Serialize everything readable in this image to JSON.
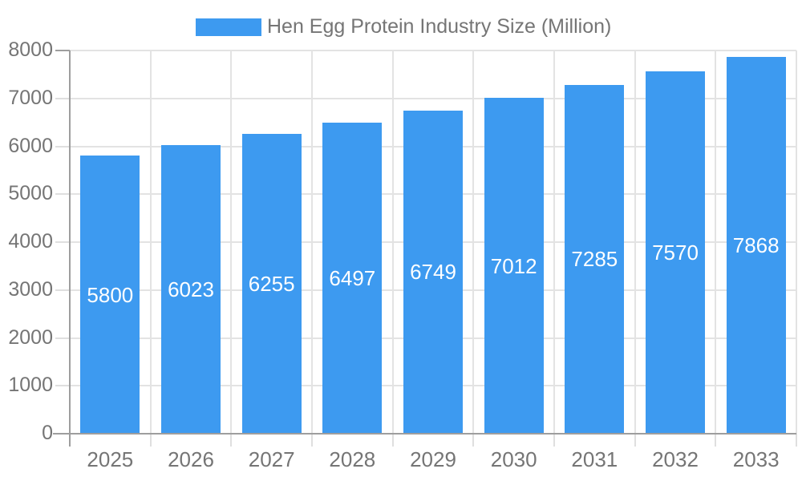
{
  "legend": {
    "label": "Hen Egg Protein Industry Size (Million)"
  },
  "chart_data": {
    "type": "bar",
    "title": "Hen Egg Protein Industry Size (Million)",
    "categories": [
      "2025",
      "2026",
      "2027",
      "2028",
      "2029",
      "2030",
      "2031",
      "2032",
      "2033"
    ],
    "values": [
      5800,
      6023,
      6255,
      6497,
      6749,
      7012,
      7285,
      7570,
      7868
    ],
    "xlabel": "",
    "ylabel": "",
    "ylim": [
      0,
      8000
    ],
    "ytick_step": 1000,
    "yticks": [
      0,
      1000,
      2000,
      3000,
      4000,
      5000,
      6000,
      7000,
      8000
    ],
    "grid": true,
    "legend_position": "top-center",
    "bar_value_labels": "inside-center",
    "colors": {
      "bar": "#3D9AF0",
      "bar_label": "#FFFFFF",
      "axis_text": "#757575",
      "gridline": "#E3E3E3",
      "tick": "#DFDFDF",
      "axis_line": "#9E9E9E",
      "background": "#FFFFFF"
    }
  }
}
